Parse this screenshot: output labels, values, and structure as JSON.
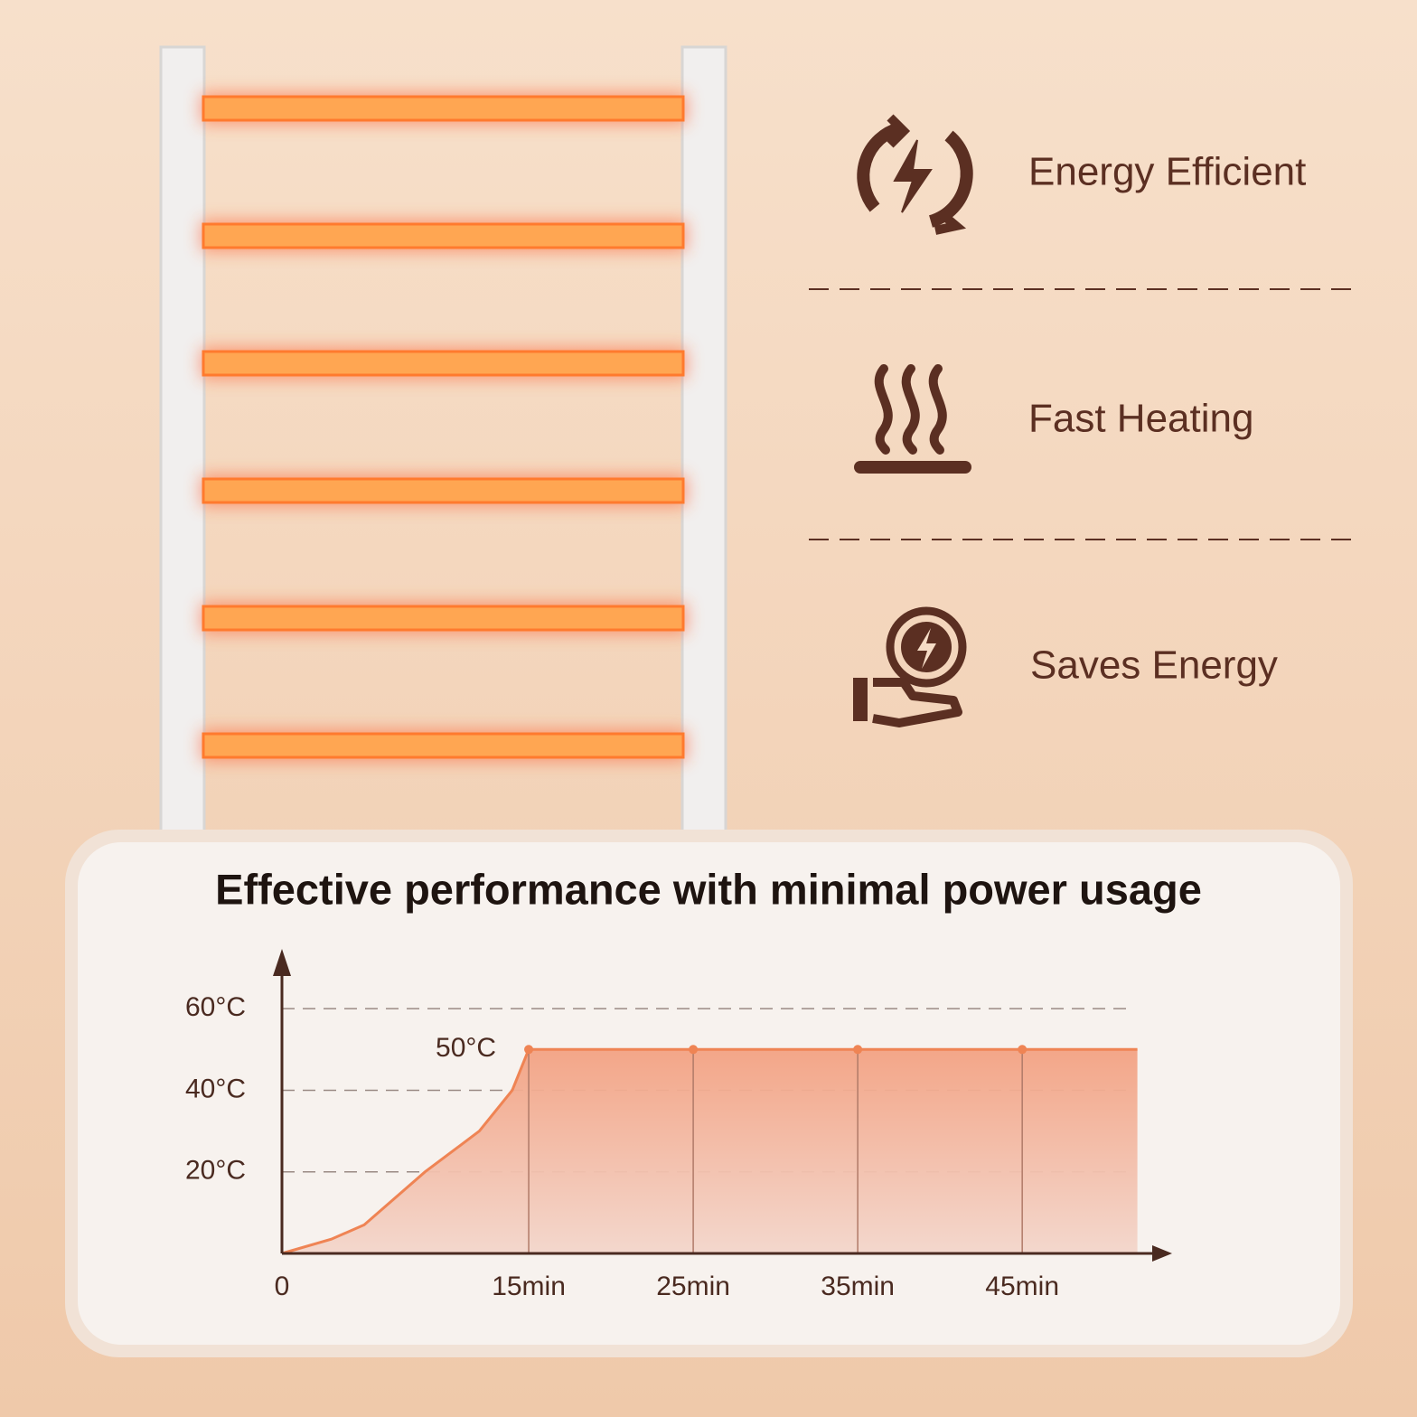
{
  "features": [
    {
      "label": "Energy Efficient"
    },
    {
      "label": "Fast Heating"
    },
    {
      "label": "Saves Energy"
    }
  ],
  "chart_data": {
    "type": "line",
    "title": "Effective performance with minimal power usage",
    "x": [
      0,
      3,
      5,
      8.7,
      12,
      14,
      15,
      25,
      35,
      45,
      52
    ],
    "series": [
      {
        "color": "#ef8454",
        "values": [
          0,
          3.5,
          7,
          20,
          30,
          40,
          50,
          50,
          50,
          50,
          50
        ]
      }
    ],
    "annotations": [
      {
        "text": "50°C",
        "x": 15,
        "y": 50
      }
    ],
    "xlim": [
      0,
      54
    ],
    "xticks": [
      0,
      {
        "value": 15,
        "label": "15min"
      },
      {
        "value": 25,
        "label": "25min"
      },
      {
        "value": 35,
        "label": "35min"
      },
      {
        "value": 45,
        "label": "45min"
      }
    ],
    "ylim": [
      0,
      72
    ],
    "yticks": [
      {
        "value": 20,
        "label": "20°C"
      },
      {
        "value": 40,
        "label": "40°C"
      },
      {
        "value": 60,
        "label": "60°C"
      }
    ],
    "grid": true
  }
}
